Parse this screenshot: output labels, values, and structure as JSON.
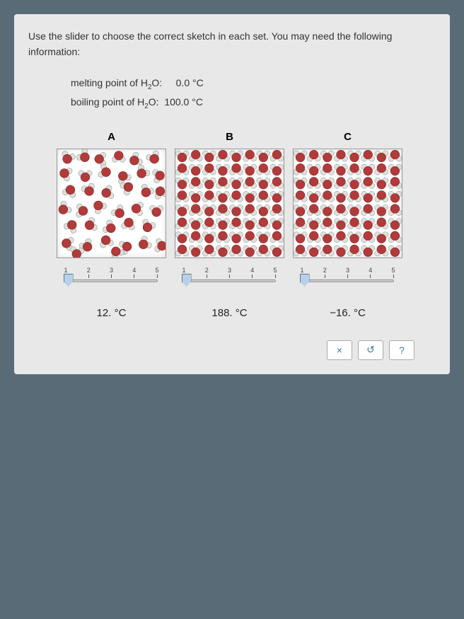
{
  "instructions": "Use the slider to choose the correct sketch in each set. You may need the following information:",
  "info": {
    "melting_label": "melting point of H",
    "melting_sub": "2",
    "melting_label2": "O:",
    "melting_value": "0.0 °C",
    "boiling_label": "boiling point of H",
    "boiling_sub": "2",
    "boiling_label2": "O:",
    "boiling_value": "100.0 °C"
  },
  "panels": {
    "a": {
      "label": "A",
      "temp": "12. °C",
      "slider_pos": 1,
      "type": "liquid"
    },
    "b": {
      "label": "B",
      "temp": "188. °C",
      "slider_pos": 1,
      "type": "solid"
    },
    "c": {
      "label": "C",
      "temp": "−16. °C",
      "slider_pos": 1,
      "type": "solid"
    }
  },
  "slider": {
    "ticks": [
      "1",
      "2",
      "3",
      "4",
      "5"
    ],
    "min": 1,
    "max": 5
  },
  "buttons": {
    "close": "×",
    "retry": "↺",
    "help": "?"
  },
  "colors": {
    "oxygen": "#b13a3a",
    "hydrogen": "#dde0db",
    "panel_bg": "#ffffff",
    "slider_thumb": "#b8d0e8",
    "button_text": "#3a7aa8"
  }
}
